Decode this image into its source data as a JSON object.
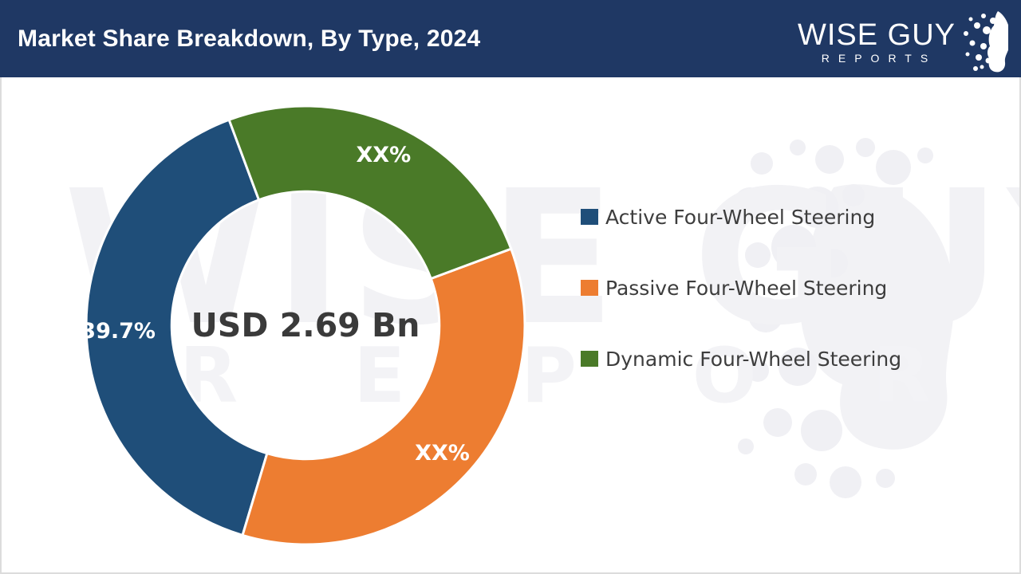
{
  "header": {
    "title": "Market Share Breakdown, By Type, 2024",
    "logo": {
      "name": "WISE GUY",
      "tagline": "REPORTS"
    }
  },
  "watermark": {
    "line1": "WISE GUY",
    "line2": "R E P O R T S"
  },
  "chart_data": {
    "type": "pie",
    "subtype": "donut",
    "title": "Market Share Breakdown, By Type, 2024",
    "center_label": "USD 2.69 Bn",
    "start_angle_deg": 110.4,
    "direction": "counterclockwise",
    "inner_radius_ratio": 0.61,
    "legend_position": "right",
    "categories": [
      "Active Four-Wheel Steering",
      "Passive Four-Wheel Steering",
      "Dynamic Four-Wheel Steering"
    ],
    "segments": [
      {
        "label": "Active Four-Wheel Steering",
        "value_pct": 39.7,
        "display_label": "39.7%",
        "color": "#1f4e79"
      },
      {
        "label": "Passive Four-Wheel Steering",
        "value_pct": 35.3,
        "display_label": "XX%",
        "color": "#ed7d31"
      },
      {
        "label": "Dynamic Four-Wheel Steering",
        "value_pct": 25.0,
        "display_label": "XX%",
        "color": "#4a7a28"
      }
    ],
    "segment_label_color": "#ffffff",
    "center_label_color": "#3a3a3a"
  },
  "colors": {
    "header_bg": "#1f3864",
    "page_bg": "#ffffff",
    "edge_border": "#dcdcdc",
    "legend_text": "#3d3d3d"
  }
}
